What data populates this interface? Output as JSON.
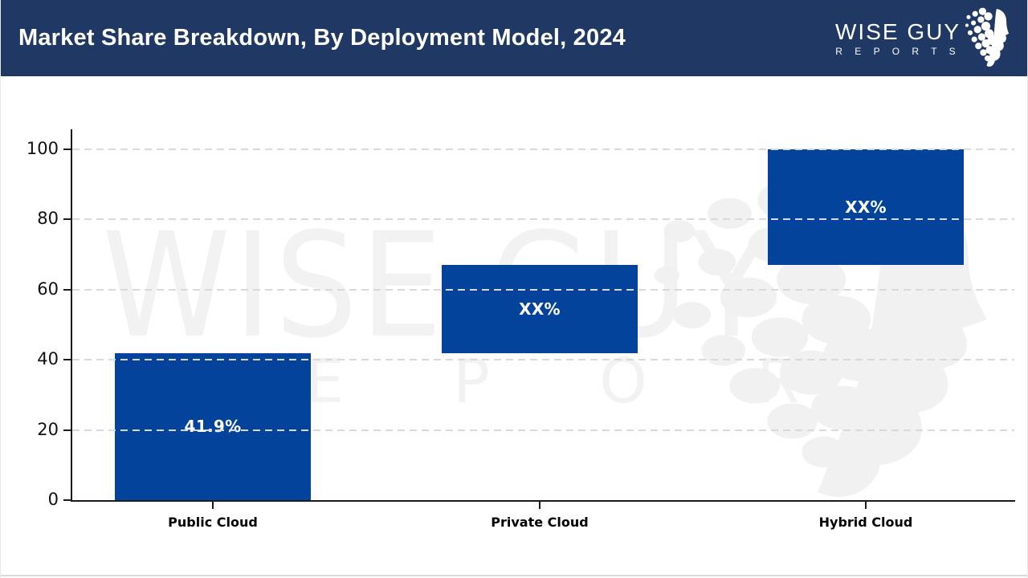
{
  "header": {
    "title": "Market Share Breakdown, By Deployment Model, 2024",
    "background": "#1f3864",
    "logo": {
      "wordmark": "WISE GUY",
      "subtext": "R E P O R T S"
    }
  },
  "watermark": {
    "line1": "WISE GUY",
    "line2": "R E P O R T S"
  },
  "chart_data": {
    "type": "bar",
    "subtype": "floating-segment-breakdown",
    "title": "Market Share Breakdown, By Deployment Model, 2024",
    "categories": [
      "Public Cloud",
      "Private Cloud",
      "Hybrid Cloud"
    ],
    "segments": [
      {
        "category": "Public Cloud",
        "from": 0,
        "to": 41.9,
        "label": "41.9%"
      },
      {
        "category": "Private Cloud",
        "from": 41.9,
        "to": 67.1,
        "label": "XX%"
      },
      {
        "category": "Hybrid Cloud",
        "from": 67.1,
        "to": 100,
        "label": "XX%"
      }
    ],
    "ylim": [
      0,
      100
    ],
    "yticks": [
      0,
      20,
      40,
      60,
      80,
      100
    ],
    "xlabel": "",
    "ylabel": "",
    "grid": "horizontal-dashed",
    "gridline_color": "#d9d9d9",
    "bar_color": "#04439c",
    "bar_label_color": "#ffffff",
    "axis_color": "#1a1a1a",
    "legend": "none"
  }
}
